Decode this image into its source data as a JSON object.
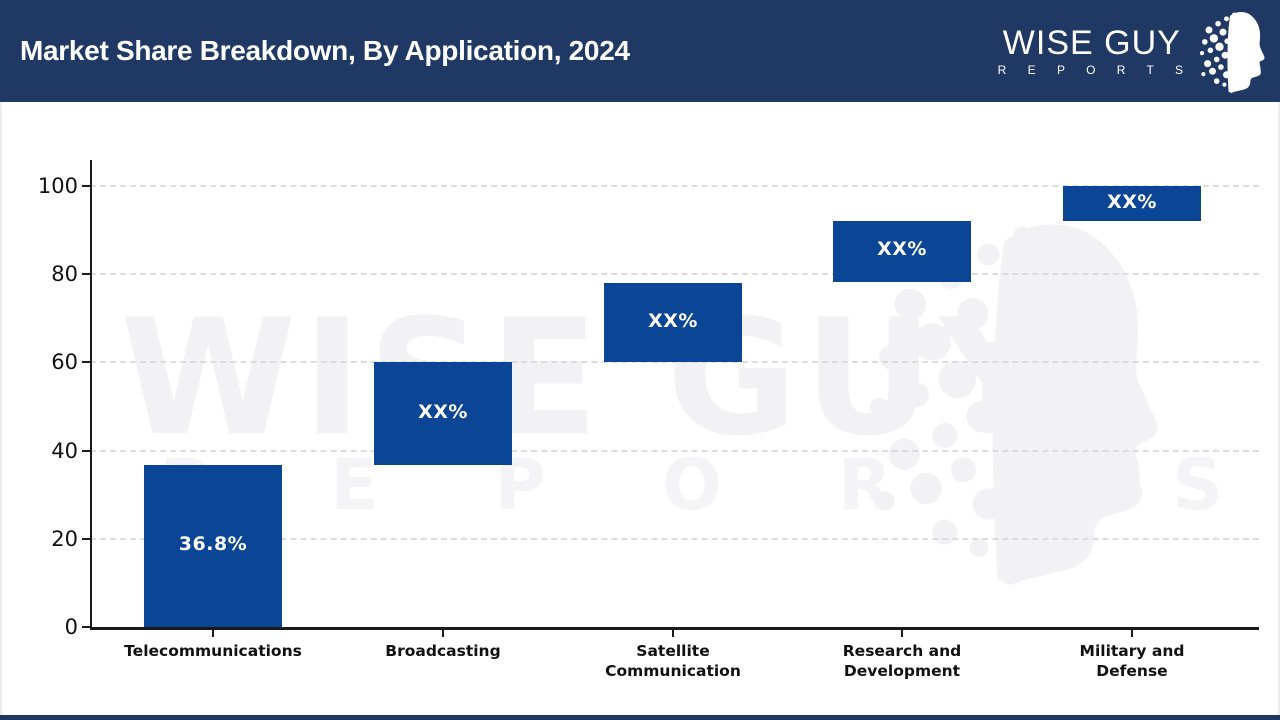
{
  "header": {
    "title": "Market Share Breakdown, By Application, 2024",
    "logo": {
      "name": "WISE GUY",
      "subname": "R E P O R T S"
    }
  },
  "watermark": {
    "line1": "WISE GUY",
    "line2": "R E P O R T S"
  },
  "chart_data": {
    "type": "bar",
    "subtype": "stacked-waterfall",
    "title": "Market Share Breakdown, By Application, 2024",
    "categories": [
      "Telecommunications",
      "Broadcasting",
      "Satellite Communication",
      "Research and Development",
      "Military and Defense"
    ],
    "category_label_lines": [
      [
        "Telecommunications"
      ],
      [
        "Broadcasting"
      ],
      [
        "Satellite",
        "Communication"
      ],
      [
        "Research and",
        "Development"
      ],
      [
        "Military and",
        "Defense"
      ]
    ],
    "segments": [
      {
        "category": "Telecommunications",
        "start": 0,
        "end": 36.8,
        "label": "36.8%"
      },
      {
        "category": "Broadcasting",
        "start": 36.8,
        "end": 60,
        "label": "XX%"
      },
      {
        "category": "Satellite Communication",
        "start": 60,
        "end": 78,
        "label": "XX%"
      },
      {
        "category": "Research and Development",
        "start": 78.3,
        "end": 92,
        "label": "XX%"
      },
      {
        "category": "Military and Defense",
        "start": 92,
        "end": 100,
        "label": "XX%"
      }
    ],
    "ylim": [
      0,
      105
    ],
    "yticks": [
      0,
      20,
      40,
      60,
      80,
      100
    ],
    "xlabel": "",
    "ylabel": "",
    "grid": "horizontal-dashed",
    "legend": "none",
    "bar_color": "#0a4596",
    "bar_label_color": "#ffffff"
  },
  "colors": {
    "header_bg": "#1f3864",
    "footer_bg": "#1f3864",
    "bar": "#0a4596",
    "grid": "#dcdcdc",
    "axis": "#1a1a1a",
    "watermark": "#f2f2f5"
  }
}
